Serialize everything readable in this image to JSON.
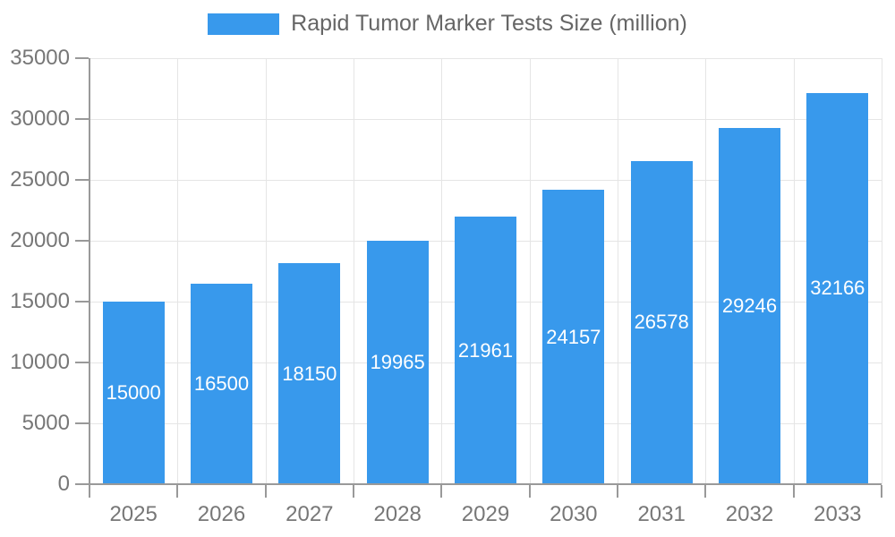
{
  "chart_data": {
    "type": "bar",
    "title": "Rapid Tumor Marker Tests Size (million)",
    "categories": [
      "2025",
      "2026",
      "2027",
      "2028",
      "2029",
      "2030",
      "2031",
      "2032",
      "2033"
    ],
    "values": [
      15000,
      16500,
      18150,
      19965,
      21961,
      24157,
      26578,
      29246,
      32166
    ],
    "series": [
      {
        "name": "Rapid Tumor Marker Tests Size (million)",
        "values": [
          15000,
          16500,
          18150,
          19965,
          21961,
          24157,
          26578,
          29246,
          32166
        ]
      }
    ],
    "xlabel": "",
    "ylabel": "",
    "ylim": [
      0,
      35000
    ],
    "ytick_step": 5000,
    "ytick_labels": [
      "0",
      "5000",
      "10000",
      "15000",
      "20000",
      "25000",
      "30000",
      "35000"
    ],
    "grid": true,
    "legend_position": "top",
    "value_labels": "inside-center",
    "colors": {
      "bar": "#3899EC",
      "grid": "#E5E5E5",
      "axis": "#999999",
      "tick_text": "#777777",
      "legend_text": "#666666",
      "value_label_text": "#FFFFFF",
      "background": "#FFFFFF"
    }
  }
}
